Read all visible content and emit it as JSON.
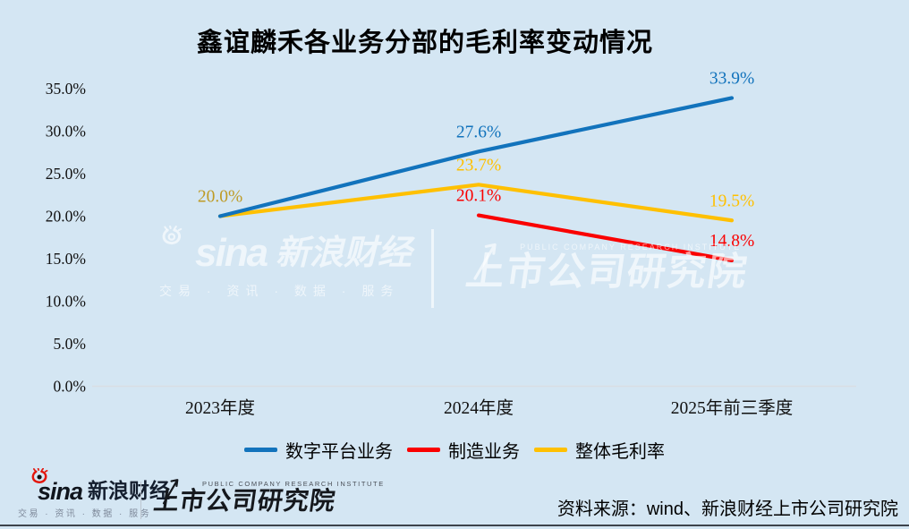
{
  "title": "鑫谊麟禾各业务分部的毛利率变动情况",
  "chart_data": {
    "type": "line",
    "categories": [
      "2023年度",
      "2024年度",
      "2025年前三季度"
    ],
    "ylim": [
      0,
      35
    ],
    "grid": false,
    "legend_position": "bottom",
    "y_ticks": [
      {
        "label": "35.0%",
        "value": 35
      },
      {
        "label": "30.0%",
        "value": 30
      },
      {
        "label": "25.0%",
        "value": 25
      },
      {
        "label": "20.0%",
        "value": 20
      },
      {
        "label": "15.0%",
        "value": 15
      },
      {
        "label": "10.0%",
        "value": 10
      },
      {
        "label": "5.0%",
        "value": 5
      },
      {
        "label": "0.0%",
        "value": 0
      }
    ],
    "series": [
      {
        "name": "数字平台业务",
        "color": "#1273BC",
        "values": [
          20.0,
          27.6,
          33.9
        ],
        "point_labels": [
          null,
          "27.6%",
          "33.9%"
        ],
        "label_colors": [
          null,
          "#1273BC",
          "#1273BC"
        ]
      },
      {
        "name": "制造业务",
        "color": "#FA0000",
        "values": [
          null,
          20.1,
          14.8
        ],
        "point_labels": [
          null,
          "20.1%",
          "14.8%"
        ],
        "label_colors": [
          null,
          "#FA0000",
          "#FA0000"
        ]
      },
      {
        "name": "整体毛利率",
        "color": "#FFC000",
        "values": [
          20.0,
          23.7,
          19.5
        ],
        "point_labels": [
          "20.0%",
          "23.7%",
          "19.5%"
        ],
        "label_colors": [
          "#BE9B25",
          "#FFC000",
          "#FFC000"
        ]
      }
    ]
  },
  "watermark": {
    "sina_text": "sina",
    "brand_text": "新浪财经",
    "tagline": "交易 · 资讯 · 数据 · 服务",
    "institute_en": "PUBLIC COMPANY RESEARCH INSTITUTE",
    "institute_cn": "上市公司研究院"
  },
  "footer": {
    "sina_text": "sina",
    "brand_text": "新浪财经",
    "tagline": "交易 · 资讯 · 数据 · 服务",
    "institute_en": "PUBLIC COMPANY RESEARCH INSTITUTE",
    "institute_cn": "上市公司研究院",
    "source": "资料来源：wind、新浪财经上市公司研究院"
  },
  "colors": {
    "background": "#D4E6F3",
    "axis_line": "#D9DEE3",
    "text": "#000000"
  }
}
